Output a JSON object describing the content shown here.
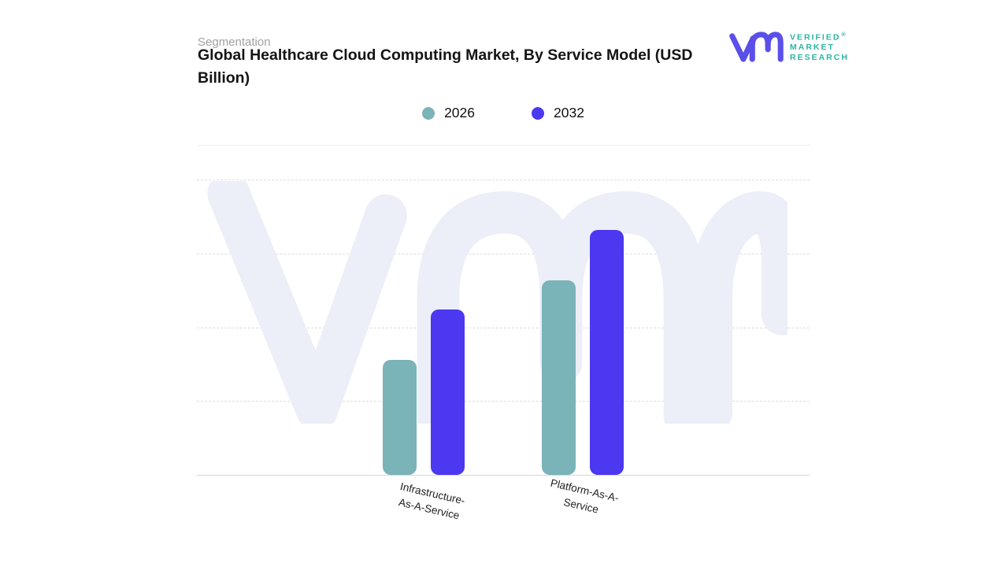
{
  "header": {
    "eyebrow": "Segmentation",
    "title": "Global Healthcare Cloud Computing Market, By Service Model (USD Billion)"
  },
  "logo": {
    "mark": "vmr-monogram",
    "lines": [
      "VERIFIED",
      "MARKET",
      "RESEARCH"
    ],
    "registered_mark": "®",
    "mark_color": "#5b4fe9",
    "text_color": "#2db3a6"
  },
  "legend": {
    "items": [
      {
        "label": "2026",
        "color": "#7ab3b8"
      },
      {
        "label": "2032",
        "color": "#4b38f0"
      }
    ]
  },
  "chart_data": {
    "type": "bar",
    "title": "Global Healthcare Cloud Computing Market, By Service Model (USD Billion)",
    "categories": [
      "Infrastructure-As-A-Service",
      "Platform-As-A-Service"
    ],
    "category_label_lines": [
      [
        "Infrastructure-",
        "As-A-Service"
      ],
      [
        "Platform-As-A-",
        "Service"
      ]
    ],
    "series": [
      {
        "name": "2026",
        "color": "#7ab3b8",
        "values": [
          39,
          66
        ]
      },
      {
        "name": "2032",
        "color": "#4b38f0",
        "values": [
          56,
          83
        ]
      }
    ],
    "xlabel": "",
    "ylabel": "",
    "ylim": [
      0,
      100
    ],
    "y_axis_labels_visible": false,
    "values_estimated_from_gridlines": true,
    "gridlines": {
      "style": "dashed",
      "values": [
        25,
        50,
        75,
        100
      ]
    },
    "legend_position": "top-center",
    "watermark": "vmr"
  },
  "theme": {
    "watermark": "#eceef8",
    "grid": "#dedede",
    "axis": "#d6d6d6",
    "divider": "#ececec"
  }
}
